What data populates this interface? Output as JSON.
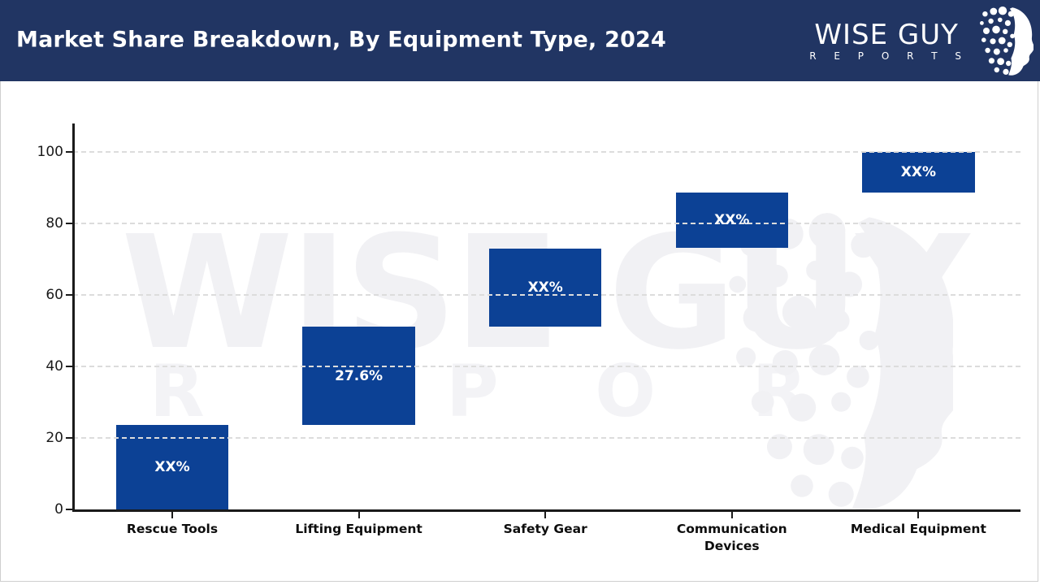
{
  "header": {
    "title": "Market Share Breakdown, By Equipment Type, 2024",
    "background_color": "#213563",
    "logo": {
      "line1": "WISE GUY",
      "line2": "R E P O R T S"
    }
  },
  "watermark": {
    "line1": "WISE GUY",
    "line2": "R E P O R T S"
  },
  "chart_data": {
    "type": "bar",
    "subtype": "waterfall",
    "title": "Market Share Breakdown, By Equipment Type, 2024",
    "xlabel": "",
    "ylabel": "",
    "categories": [
      "Rescue Tools",
      "Lifting Equipment",
      "Safety Gear",
      "Communication Devices",
      "Medical Equipment"
    ],
    "segments": [
      {
        "category": "Rescue Tools",
        "start": 0,
        "end": 23.5,
        "value": 23.5,
        "label": "XX%"
      },
      {
        "category": "Lifting Equipment",
        "start": 23.5,
        "end": 51.1,
        "value": 27.6,
        "label": "27.6%"
      },
      {
        "category": "Safety Gear",
        "start": 51.1,
        "end": 73.0,
        "value": 21.9,
        "label": "XX%"
      },
      {
        "category": "Communication Devices",
        "start": 73.0,
        "end": 88.5,
        "value": 15.5,
        "label": "XX%"
      },
      {
        "category": "Medical Equipment",
        "start": 88.5,
        "end": 100.0,
        "value": 11.5,
        "label": "XX%"
      }
    ],
    "yticks": [
      0,
      20,
      40,
      60,
      80,
      100
    ],
    "ylim": [
      0,
      107
    ],
    "grid": true,
    "grid_style": "dashed",
    "legend": false,
    "bar_color": "#0c4195",
    "bar_label_color": "#ffffff",
    "axis_color": "#1a1a1a"
  }
}
